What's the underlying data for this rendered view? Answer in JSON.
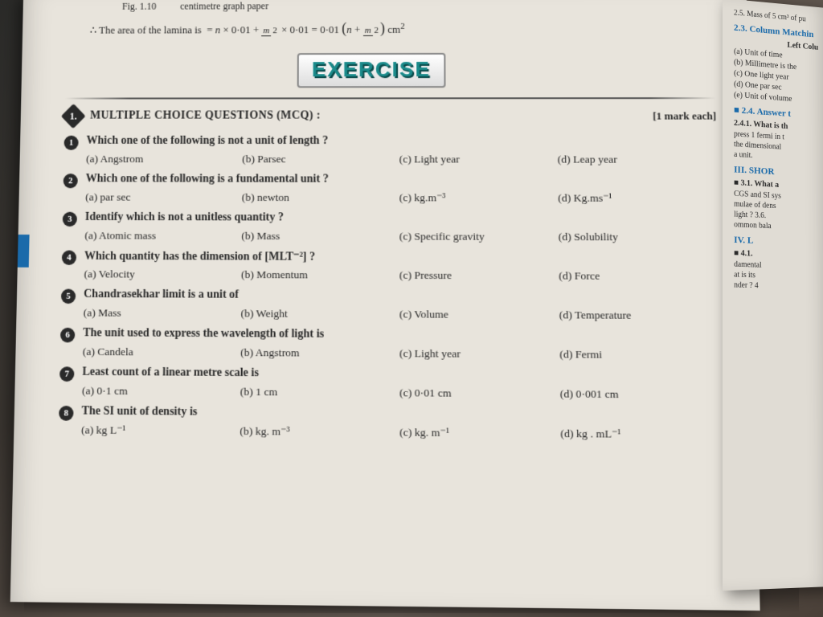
{
  "header": {
    "fig_label": "Fig. 1.10",
    "graph_text": "centimetre graph paper",
    "formula_prefix": "∴  The area of the lamina is",
    "formula_body": "= n × 0·01 + (m/2) × 0·01 = 0·01 (n + m/2) cm²"
  },
  "exercise_label": "EXERCISE",
  "section": {
    "number": "1.",
    "title": "MULTIPLE CHOICE QUESTIONS (MCQ) :",
    "marks": "[1 mark each]"
  },
  "questions": [
    {
      "n": "1",
      "text": "Which one of the following is not a unit of length ?",
      "opts": [
        "(a) Angstrom",
        "(b) Parsec",
        "(c) Light year",
        "(d) Leap year"
      ]
    },
    {
      "n": "2",
      "text": "Which one of the following is a fundamental unit ?",
      "opts": [
        "(a) par sec",
        "(b) newton",
        "(c) kg.m⁻³",
        "(d) Kg.ms⁻¹"
      ]
    },
    {
      "n": "3",
      "text": "Identify which is not a unitless quantity ?",
      "opts": [
        "(a) Atomic mass",
        "(b) Mass",
        "(c) Specific gravity",
        "(d) Solubility"
      ]
    },
    {
      "n": "4",
      "text": "Which quantity has the dimension of [MLT⁻²] ?",
      "opts": [
        "(a) Velocity",
        "(b) Momentum",
        "(c) Pressure",
        "(d) Force"
      ]
    },
    {
      "n": "5",
      "text": "Chandrasekhar limit is a unit of",
      "opts": [
        "(a) Mass",
        "(b) Weight",
        "(c) Volume",
        "(d) Temperature"
      ]
    },
    {
      "n": "6",
      "text": "The unit used to express the wavelength of light is",
      "opts": [
        "(a) Candela",
        "(b) Angstrom",
        "(c) Light year",
        "(d) Fermi"
      ]
    },
    {
      "n": "7",
      "text": "Least count of a linear metre scale is",
      "opts": [
        "(a) 0·1 cm",
        "(b) 1 cm",
        "(c) 0·01 cm",
        "(d) 0·001 cm"
      ]
    },
    {
      "n": "8",
      "text": "The SI unit of density is",
      "opts": [
        "(a) kg L⁻¹",
        "(b) kg. m⁻³",
        "(c) kg. m⁻¹",
        "(d) kg . mL⁻¹"
      ]
    }
  ],
  "right_page": {
    "top_frag": "2.5. Mass of 5 cm³ of pu",
    "heading1": "2.3. Column Matchin",
    "subhead1": "Left Colu",
    "col_items": [
      "(a)  Unit of time",
      "(b)  Millimetre is the",
      "(c)  One light year",
      "(d)  One par sec",
      "(e)  Unit of volume"
    ],
    "heading2": "■ 2.4.  Answer t",
    "sub241": "2.4.1. What is th",
    "frag_lines": [
      "press 1 fermi in t",
      "the dimensional",
      "a unit."
    ],
    "heading3": "III.    SHOR",
    "sub31": "■ 3.1. What a",
    "frag31": [
      "CGS and SI sys",
      "mulae of dens",
      "light ? 3.6.",
      "ommon bala"
    ],
    "heading4": "IV.    L",
    "sub41": "■ 4.1.  ",
    "frag41": [
      "damental",
      "at is its",
      "nder ? 4"
    ]
  }
}
